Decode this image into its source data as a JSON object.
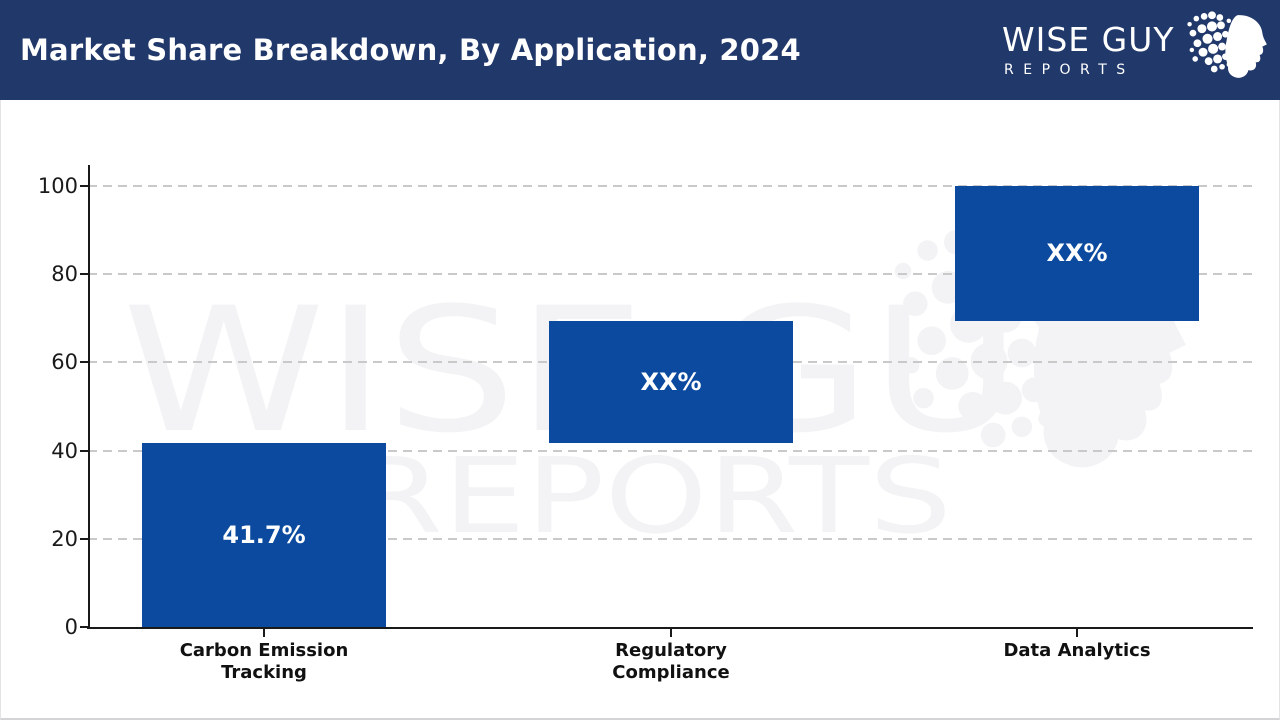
{
  "header": {
    "title": "Market Share Breakdown, By Application, 2024"
  },
  "brand": {
    "line1": "WISE GUY",
    "line2": "REPORTS"
  },
  "colors": {
    "header_bg": "#21386b",
    "bar": "#0b4a9f",
    "bar_label": "#ffffff",
    "grid": "#c9c9c9",
    "axis": "#1a1a1a",
    "watermark": "#f3f3f6"
  },
  "chart_data": {
    "type": "bar",
    "subtype": "floating-waterfall",
    "title": "Market Share Breakdown, By Application, 2024",
    "categories": [
      [
        "Carbon Emission",
        "Tracking"
      ],
      [
        "Regulatory",
        "Compliance"
      ],
      [
        "Data Analytics"
      ]
    ],
    "bars": [
      {
        "category": "Carbon Emission Tracking",
        "start": 0,
        "end": 41.7,
        "label": "41.7%"
      },
      {
        "category": "Regulatory Compliance",
        "start": 41.7,
        "end": 69.5,
        "label": "XX%"
      },
      {
        "category": "Data Analytics",
        "start": 69.5,
        "end": 100,
        "label": "XX%"
      }
    ],
    "ylim": [
      0,
      100
    ],
    "yticks": [
      0,
      20,
      40,
      60,
      80,
      100
    ],
    "xlabel": "",
    "ylabel": "",
    "grid": {
      "axis": "y",
      "style": "dashed",
      "color": "#c9c9c9"
    },
    "legend": null,
    "bar_color": "#0b4a9f",
    "bar_label_color": "#ffffff"
  }
}
